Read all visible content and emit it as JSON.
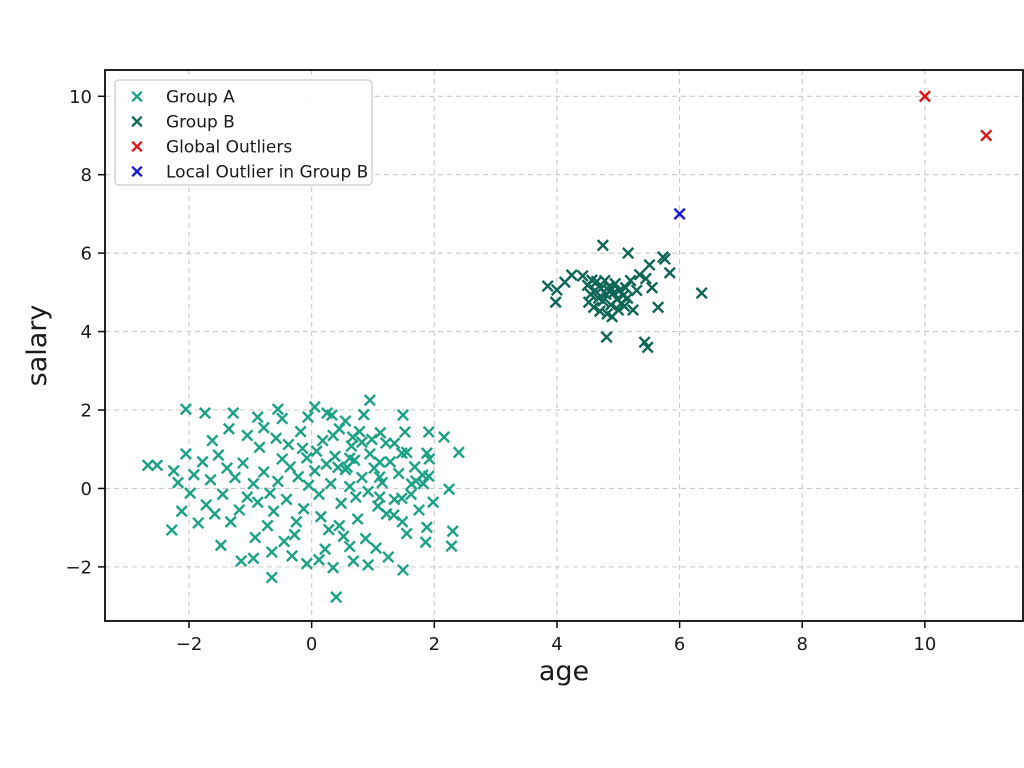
{
  "chart_data": {
    "type": "scatter",
    "title": "",
    "xlabel": "age",
    "ylabel": "salary",
    "xlim": [
      -3.37,
      11.6
    ],
    "ylim": [
      -3.38,
      10.67
    ],
    "xticks": [
      -2,
      0,
      2,
      4,
      6,
      8,
      10
    ],
    "yticks": [
      -2,
      0,
      2,
      4,
      6,
      8,
      10
    ],
    "grid": true,
    "grid_style": "dashed",
    "marker": "x",
    "legend_position": "upper left",
    "series": [
      {
        "name": "Group A",
        "color": "#1aa186",
        "points": [
          [
            -2.67,
            0.59
          ],
          [
            -2.52,
            0.59
          ],
          [
            -2.28,
            -1.06
          ],
          [
            -2.05,
            2.02
          ],
          [
            -1.74,
            1.92
          ],
          [
            0.4,
            -2.77
          ],
          [
            -0.65,
            -2.27
          ],
          [
            0.95,
            2.25
          ],
          [
            1.49,
            1.87
          ],
          [
            1.52,
            1.44
          ],
          [
            1.91,
            1.44
          ],
          [
            2.16,
            1.31
          ],
          [
            1.21,
            1.16
          ],
          [
            1.47,
            0.9
          ],
          [
            1.88,
            0.9
          ],
          [
            2.4,
            0.92
          ],
          [
            1.11,
            0.67
          ],
          [
            1.11,
            0.29
          ],
          [
            1.7,
            0.19
          ],
          [
            1.81,
            0.34
          ],
          [
            1.91,
            0.31
          ],
          [
            1.63,
            0.11
          ],
          [
            2.24,
            -0.02
          ],
          [
            1.11,
            -0.22
          ],
          [
            1.47,
            -0.25
          ],
          [
            1.34,
            -0.68
          ],
          [
            1.88,
            -0.99
          ],
          [
            1.86,
            -1.37
          ],
          [
            2.3,
            -1.09
          ],
          [
            2.28,
            -1.47
          ],
          [
            1.49,
            -2.08
          ],
          [
            0.33,
            1.87
          ],
          [
            -0.06,
            1.82
          ],
          [
            0.67,
            1.31
          ],
          [
            0.82,
            1.18
          ],
          [
            0.62,
            0.77
          ],
          [
            0.7,
            0.72
          ],
          [
            0.43,
            0.54
          ],
          [
            0.58,
            0.54
          ],
          [
            -0.05,
            0.08
          ],
          [
            0.12,
            -0.15
          ],
          [
            -0.22,
            0.3
          ],
          [
            0.31,
            0.12
          ],
          [
            -0.41,
            -0.28
          ],
          [
            0.05,
            0.45
          ],
          [
            -0.13,
            -0.52
          ],
          [
            0.24,
            0.62
          ],
          [
            -0.35,
            0.55
          ],
          [
            0.48,
            -0.38
          ],
          [
            -0.55,
            0.18
          ],
          [
            0.62,
            0.05
          ],
          [
            -0.68,
            -0.12
          ],
          [
            0.15,
            -0.72
          ],
          [
            -0.08,
            0.78
          ],
          [
            0.38,
            0.82
          ],
          [
            -0.48,
            0.75
          ],
          [
            0.72,
            -0.22
          ],
          [
            -0.78,
            0.42
          ],
          [
            0.55,
            0.48
          ],
          [
            -0.25,
            -0.85
          ],
          [
            0.08,
            0.95
          ],
          [
            -0.62,
            -0.58
          ],
          [
            0.82,
            0.28
          ],
          [
            -0.88,
            -0.35
          ],
          [
            0.45,
            -0.95
          ],
          [
            -0.15,
            1.02
          ],
          [
            0.92,
            -0.08
          ],
          [
            -0.95,
            0.12
          ],
          [
            0.28,
            -1.05
          ],
          [
            -0.38,
            1.12
          ],
          [
            1.02,
            0.52
          ],
          [
            -1.05,
            -0.22
          ],
          [
            0.65,
            1.08
          ],
          [
            -0.72,
            -0.95
          ],
          [
            1.08,
            -0.45
          ],
          [
            -1.12,
            0.65
          ],
          [
            0.18,
            1.22
          ],
          [
            -0.28,
            -1.18
          ],
          [
            0.95,
            0.88
          ],
          [
            -1.18,
            -0.55
          ],
          [
            0.52,
            -1.22
          ],
          [
            -0.85,
            1.05
          ],
          [
            1.15,
            0.15
          ],
          [
            -1.25,
            0.28
          ],
          [
            0.75,
            -0.78
          ],
          [
            -0.45,
            -1.35
          ],
          [
            0.35,
            1.35
          ],
          [
            -1.32,
            -0.85
          ],
          [
            1.22,
            -0.65
          ],
          [
            -0.58,
            1.28
          ],
          [
            0.88,
            -1.28
          ],
          [
            -1.38,
            0.52
          ],
          [
            0.62,
            -1.48
          ],
          [
            -0.92,
            -1.25
          ],
          [
            1.28,
            0.68
          ],
          [
            -1.45,
            -0.15
          ],
          [
            0.22,
            -1.55
          ],
          [
            -0.18,
            1.45
          ],
          [
            1.35,
            -0.28
          ],
          [
            -1.52,
            0.85
          ],
          [
            0.98,
            1.25
          ],
          [
            -0.65,
            -1.62
          ],
          [
            1.42,
            0.38
          ],
          [
            -1.58,
            -0.65
          ],
          [
            0.45,
            1.52
          ],
          [
            -1.05,
            1.35
          ],
          [
            1.48,
            -0.85
          ],
          [
            -0.32,
            -1.72
          ],
          [
            0.78,
            1.45
          ],
          [
            -1.65,
            0.22
          ],
          [
            1.05,
            -1.52
          ],
          [
            -0.78,
            1.55
          ],
          [
            0.12,
            -1.82
          ],
          [
            -1.72,
            -0.42
          ],
          [
            1.55,
            0.92
          ],
          [
            -0.95,
            -1.78
          ],
          [
            0.68,
            -1.85
          ],
          [
            -1.78,
            0.68
          ],
          [
            1.62,
            -0.15
          ],
          [
            -0.08,
            -1.92
          ],
          [
            0.35,
            -2.02
          ],
          [
            -1.85,
            -0.88
          ],
          [
            0.92,
            -1.95
          ],
          [
            -1.92,
            0.35
          ],
          [
            1.68,
            0.55
          ],
          [
            -1.15,
            -1.85
          ],
          [
            1.12,
            1.42
          ],
          [
            -1.98,
            -0.12
          ],
          [
            0.55,
            1.72
          ],
          [
            -0.48,
            1.78
          ],
          [
            1.75,
            -0.55
          ],
          [
            -2.05,
            0.88
          ],
          [
            0.25,
            1.92
          ],
          [
            -1.35,
            1.52
          ],
          [
            1.82,
            0.12
          ],
          [
            -0.88,
            1.82
          ],
          [
            1.25,
            -1.75
          ],
          [
            -2.12,
            -0.58
          ],
          [
            1.92,
            0.75
          ],
          [
            -1.48,
            -1.45
          ],
          [
            0.85,
            1.88
          ],
          [
            -2.18,
            0.15
          ],
          [
            1.35,
            1.15
          ],
          [
            -0.55,
            2.02
          ],
          [
            1.98,
            -0.35
          ],
          [
            -1.62,
            1.22
          ],
          [
            0.05,
            2.08
          ],
          [
            -2.25,
            0.45
          ],
          [
            1.55,
            -1.15
          ],
          [
            -1.28,
            1.92
          ]
        ]
      },
      {
        "name": "Group B",
        "color": "#0d6657",
        "points": [
          [
            4.75,
            6.2
          ],
          [
            5.16,
            6.0
          ],
          [
            5.73,
            5.9
          ],
          [
            5.76,
            5.85
          ],
          [
            5.51,
            5.7
          ],
          [
            5.84,
            5.5
          ],
          [
            3.85,
            5.16
          ],
          [
            4.0,
            5.06
          ],
          [
            3.98,
            4.75
          ],
          [
            4.13,
            5.26
          ],
          [
            4.24,
            5.44
          ],
          [
            4.42,
            5.42
          ],
          [
            4.57,
            5.31
          ],
          [
            4.81,
            3.86
          ],
          [
            5.24,
            4.55
          ],
          [
            5.43,
            3.73
          ],
          [
            5.48,
            3.6
          ],
          [
            5.65,
            4.62
          ],
          [
            6.36,
            4.98
          ],
          [
            4.55,
            4.95
          ],
          [
            4.62,
            5.05
          ],
          [
            4.68,
            4.85
          ],
          [
            4.72,
            5.1
          ],
          [
            4.75,
            4.78
          ],
          [
            4.8,
            4.95
          ],
          [
            4.85,
            5.15
          ],
          [
            4.88,
            4.68
          ],
          [
            4.92,
            4.98
          ],
          [
            4.95,
            5.22
          ],
          [
            4.98,
            4.82
          ],
          [
            5.02,
            5.05
          ],
          [
            5.05,
            4.72
          ],
          [
            5.08,
            4.92
          ],
          [
            5.12,
            5.12
          ],
          [
            5.15,
            4.85
          ],
          [
            4.6,
            4.62
          ],
          [
            4.65,
            5.28
          ],
          [
            4.7,
            4.52
          ],
          [
            4.78,
            5.3
          ],
          [
            4.82,
            4.45
          ],
          [
            4.9,
            4.38
          ],
          [
            5.0,
            4.55
          ],
          [
            5.1,
            4.65
          ],
          [
            4.5,
            5.18
          ],
          [
            4.52,
            4.75
          ],
          [
            4.86,
            5.02
          ],
          [
            5.3,
            5.05
          ],
          [
            5.35,
            5.45
          ],
          [
            5.45,
            5.35
          ],
          [
            5.55,
            5.12
          ],
          [
            5.2,
            5.3
          ]
        ]
      },
      {
        "name": "Global Outliers",
        "color": "#e01212",
        "points": [
          [
            10,
            10
          ],
          [
            11,
            9
          ]
        ]
      },
      {
        "name": "Local Outlier in Group B",
        "color": "#1414e0",
        "points": [
          [
            6,
            7
          ]
        ]
      }
    ]
  }
}
